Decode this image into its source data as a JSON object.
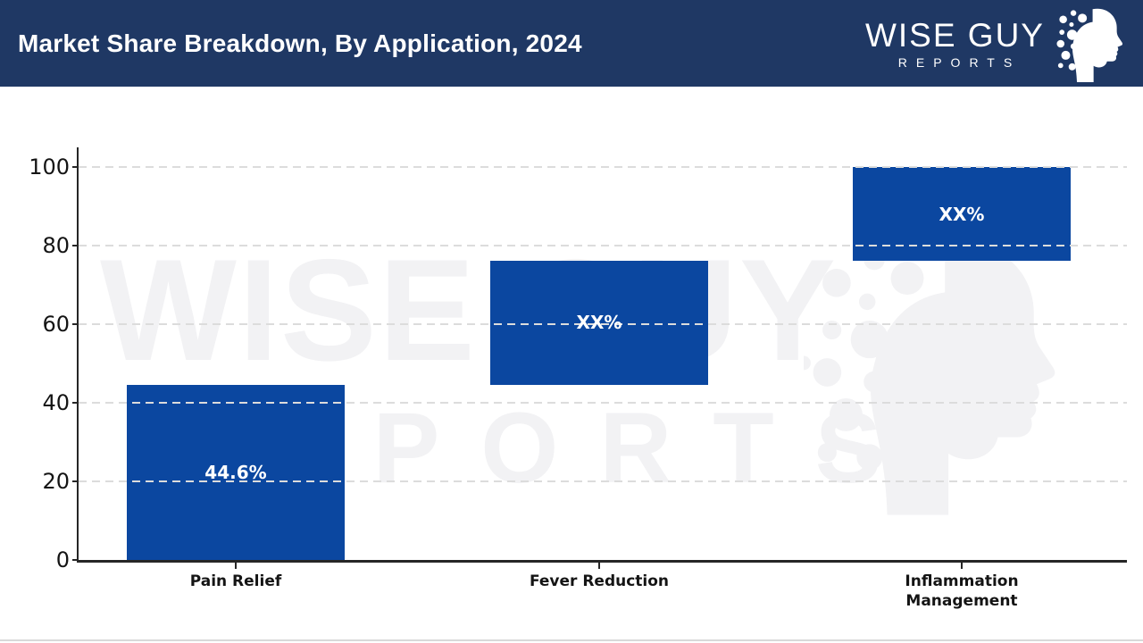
{
  "colors": {
    "header_bg": "#1F3864",
    "bar_fill": "#0B47A0",
    "grid": "#dcdcdc",
    "axis": "#262626",
    "watermark": "#f2f2f4"
  },
  "header": {
    "title": "Market Share Breakdown, By Application, 2024",
    "logo": {
      "line1": "WISE GUY",
      "line2": "REPORTS"
    }
  },
  "watermark": {
    "line1": "WISE GUY",
    "line2": "REPORTS"
  },
  "chart_data": {
    "type": "bar",
    "variant": "waterfall-floating-bars",
    "title": "Market Share Breakdown, By Application, 2024",
    "categories": [
      "Pain Relief",
      "Fever Reduction",
      "Inflammation Management"
    ],
    "segments": [
      {
        "category": "Pain Relief",
        "start": 0,
        "end": 44.6,
        "label": "44.6%"
      },
      {
        "category": "Fever Reduction",
        "start": 44.6,
        "end": 76.1,
        "label": "XX%"
      },
      {
        "category": "Inflammation Management",
        "start": 76.1,
        "end": 100,
        "label": "XX%"
      }
    ],
    "xlabel": "",
    "ylabel": "",
    "ylim": [
      0,
      100
    ],
    "yticks": [
      0,
      20,
      40,
      60,
      80,
      100
    ],
    "grid": "horizontal-dashed-over-bars",
    "legend": "none",
    "bar_value_color": "#ffffff"
  }
}
